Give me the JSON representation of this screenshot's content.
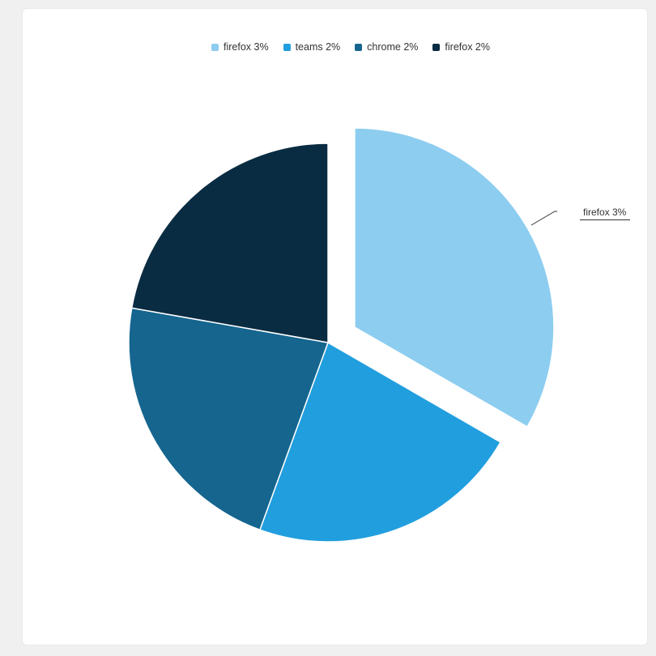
{
  "page": {
    "background_color": "#f0f0f0",
    "card_color": "#ffffff"
  },
  "chart_data": {
    "type": "pie",
    "title": "",
    "legend_position": "top",
    "start_angle": 0,
    "direction": "clockwise",
    "slices": [
      {
        "label": "firefox 3%",
        "name": "firefox",
        "value": 3,
        "percent_of_total": 33.3,
        "color": "#8DCDF0",
        "exploded": true,
        "data_label": "firefox 3%"
      },
      {
        "label": "teams 2%",
        "name": "teams",
        "value": 2,
        "percent_of_total": 22.2,
        "color": "#219EDE",
        "exploded": false
      },
      {
        "label": "chrome 2%",
        "name": "chrome",
        "value": 2,
        "percent_of_total": 22.2,
        "color": "#15658F",
        "exploded": false
      },
      {
        "label": "firefox 2%",
        "name": "firefox",
        "value": 2,
        "percent_of_total": 22.2,
        "color": "#0A2C42",
        "exploded": false
      }
    ],
    "data_label": {
      "text": "firefox 3%"
    }
  }
}
